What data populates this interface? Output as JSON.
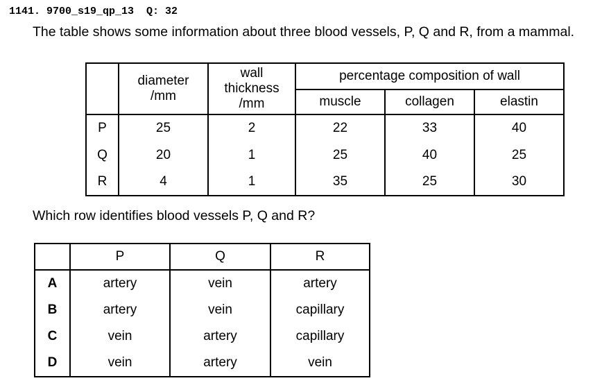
{
  "header": {
    "ref_line": "1141. 9700_s19_qp_13  Q: 32"
  },
  "question": {
    "intro": "The table shows some information about three blood vessels, P, Q and R, from a mammal.",
    "prompt": "Which row identifies blood vessels P, Q and R?"
  },
  "info_table": {
    "corner_label": "",
    "col_headers": [
      "diameter\n/mm",
      "wall\nthickness\n/mm"
    ],
    "group_header": "percentage composition of wall",
    "sub_headers": [
      "muscle",
      "collagen",
      "elastin"
    ],
    "rows": [
      {
        "label": "P",
        "values": [
          "25",
          "2",
          "22",
          "33",
          "40"
        ]
      },
      {
        "label": "Q",
        "values": [
          "20",
          "1",
          "25",
          "40",
          "25"
        ]
      },
      {
        "label": "R",
        "values": [
          "4",
          "1",
          "35",
          "25",
          "30"
        ]
      }
    ]
  },
  "answer_table": {
    "corner_label": "",
    "col_headers": [
      "P",
      "Q",
      "R"
    ],
    "rows": [
      {
        "label": "A",
        "values": [
          "artery",
          "vein",
          "artery"
        ]
      },
      {
        "label": "B",
        "values": [
          "artery",
          "vein",
          "capillary"
        ]
      },
      {
        "label": "C",
        "values": [
          "vein",
          "artery",
          "capillary"
        ]
      },
      {
        "label": "D",
        "values": [
          "vein",
          "artery",
          "vein"
        ]
      }
    ]
  },
  "colors": {
    "text": "#000000",
    "border": "#000000",
    "background": "#ffffff"
  }
}
